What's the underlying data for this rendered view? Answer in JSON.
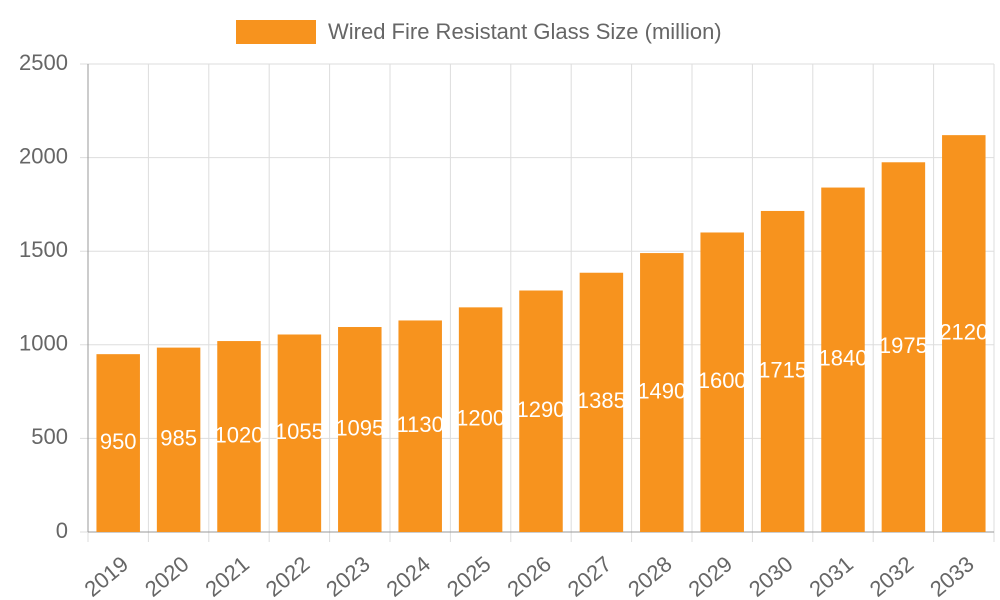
{
  "chart_data": {
    "type": "bar",
    "categories": [
      "2019",
      "2020",
      "2021",
      "2022",
      "2023",
      "2024",
      "2025",
      "2026",
      "2027",
      "2028",
      "2029",
      "2030",
      "2031",
      "2032",
      "2033"
    ],
    "series": [
      {
        "name": "Wired Fire Resistant Glass Size (million)",
        "color": "#f7931e",
        "values": [
          950,
          985,
          1020,
          1055,
          1095,
          1130,
          1200,
          1290,
          1385,
          1490,
          1600,
          1715,
          1840,
          1975,
          2120
        ]
      }
    ],
    "ylim": [
      0,
      2500
    ],
    "yticks": [
      0,
      500,
      1000,
      1500,
      2000,
      2500
    ],
    "grid": true,
    "legend": "top",
    "data_labels": true
  }
}
